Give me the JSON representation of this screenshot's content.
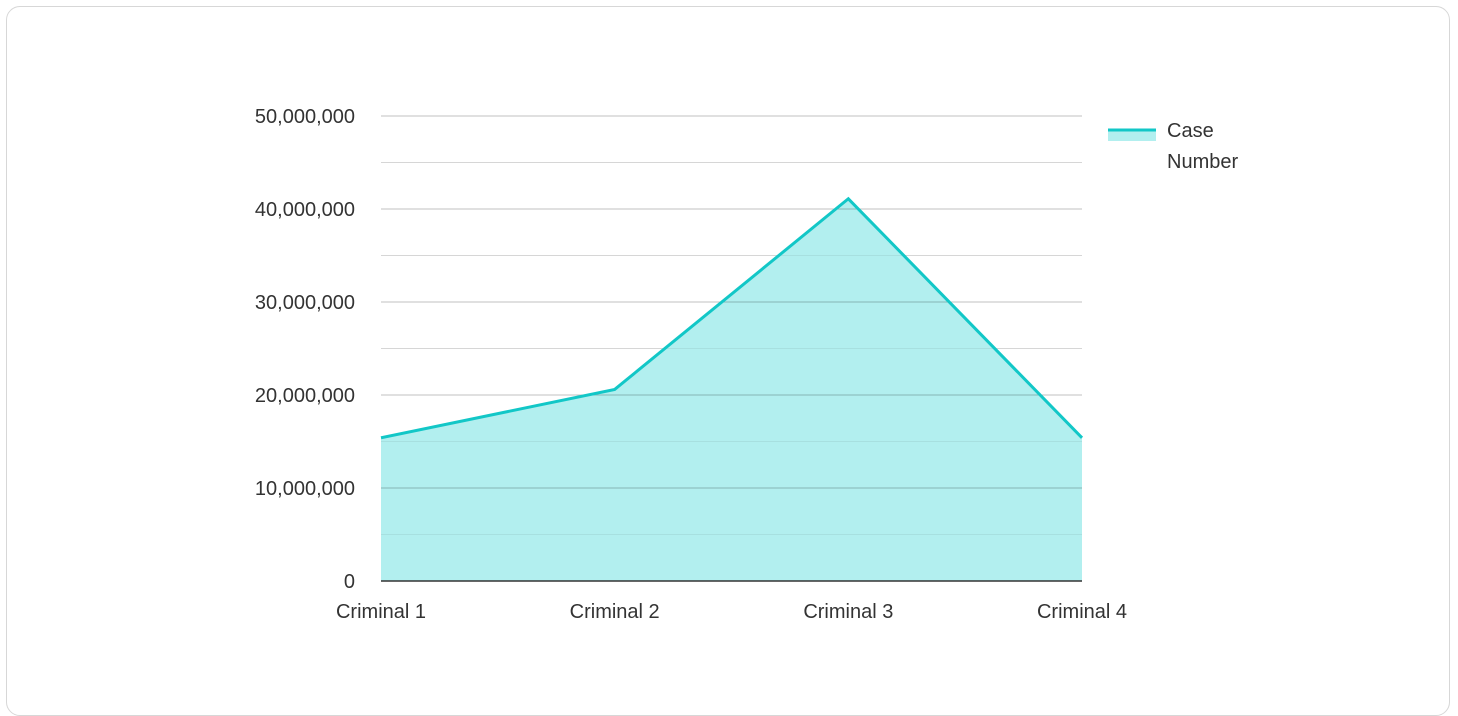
{
  "chart_data": {
    "type": "area",
    "categories": [
      "Criminal 1",
      "Criminal 2",
      "Criminal 3",
      "Criminal 4"
    ],
    "series": [
      {
        "name": "Case Number",
        "values": [
          15400000,
          20600000,
          41100000,
          15400000
        ],
        "line_color": "#12c7c7",
        "fill_color": "#b2efef"
      }
    ],
    "ylim": [
      0,
      50000000
    ],
    "y_major_ticks": [
      0,
      10000000,
      20000000,
      30000000,
      40000000,
      50000000
    ],
    "y_tick_labels": [
      "0",
      "10,000,000",
      "20,000,000",
      "30,000,000",
      "40,000,000",
      "50,000,000"
    ],
    "y_minor_ticks": [
      5000000,
      15000000,
      25000000,
      35000000,
      45000000
    ],
    "grid": true,
    "legend_position": "right",
    "legend_lines": [
      "Case",
      "Number"
    ],
    "title": "",
    "xlabel": "",
    "ylabel": ""
  }
}
